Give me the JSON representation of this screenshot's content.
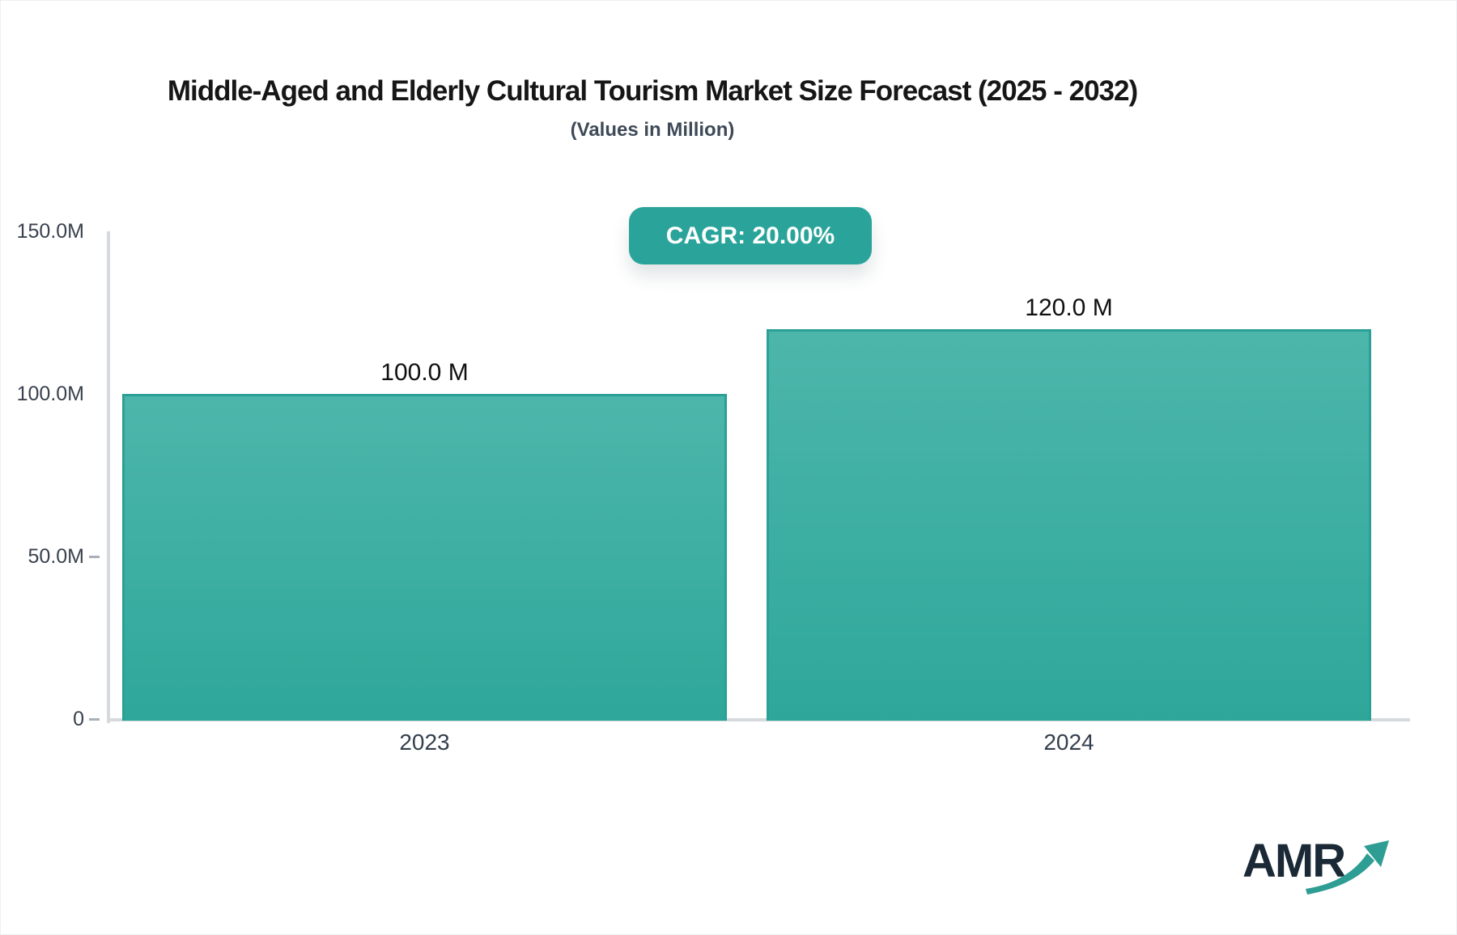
{
  "header": {
    "title": "Middle-Aged and Elderly Cultural Tourism Market Size Forecast (2025 - 2032)",
    "subtitle": "(Values in Million)"
  },
  "badge": {
    "label": "CAGR: 20.00%",
    "background_color": "#2aa49a",
    "text_color": "#ffffff"
  },
  "chart_data": {
    "type": "bar",
    "title": "Middle-Aged and Elderly Cultural Tourism Market Size Forecast (2025 - 2032)",
    "subtitle": "(Values in Million)",
    "unit": "Million",
    "categories": [
      "2023",
      "2024"
    ],
    "values": [
      100.0,
      120.0
    ],
    "value_labels": [
      "100.0 M",
      "120.0 M"
    ],
    "cagr": "20.00%",
    "ylim": [
      0,
      150
    ],
    "yticks": [
      {
        "value": 150,
        "label": "150.0M"
      },
      {
        "value": 100,
        "label": "100.0M"
      },
      {
        "value": 50,
        "label": "50.0M"
      },
      {
        "value": 0,
        "label": "0"
      }
    ],
    "grid": false,
    "legend": false,
    "bar_color_top": "#4db6ab",
    "bar_color_bottom": "#2ea79a",
    "axis_color": "#d6dadd",
    "label_color": "#333f4d"
  },
  "logo": {
    "text": "AMR",
    "icon": "trend-up-arrow-icon",
    "text_color": "#1a2935",
    "arrow_color": "#2e9d94"
  }
}
